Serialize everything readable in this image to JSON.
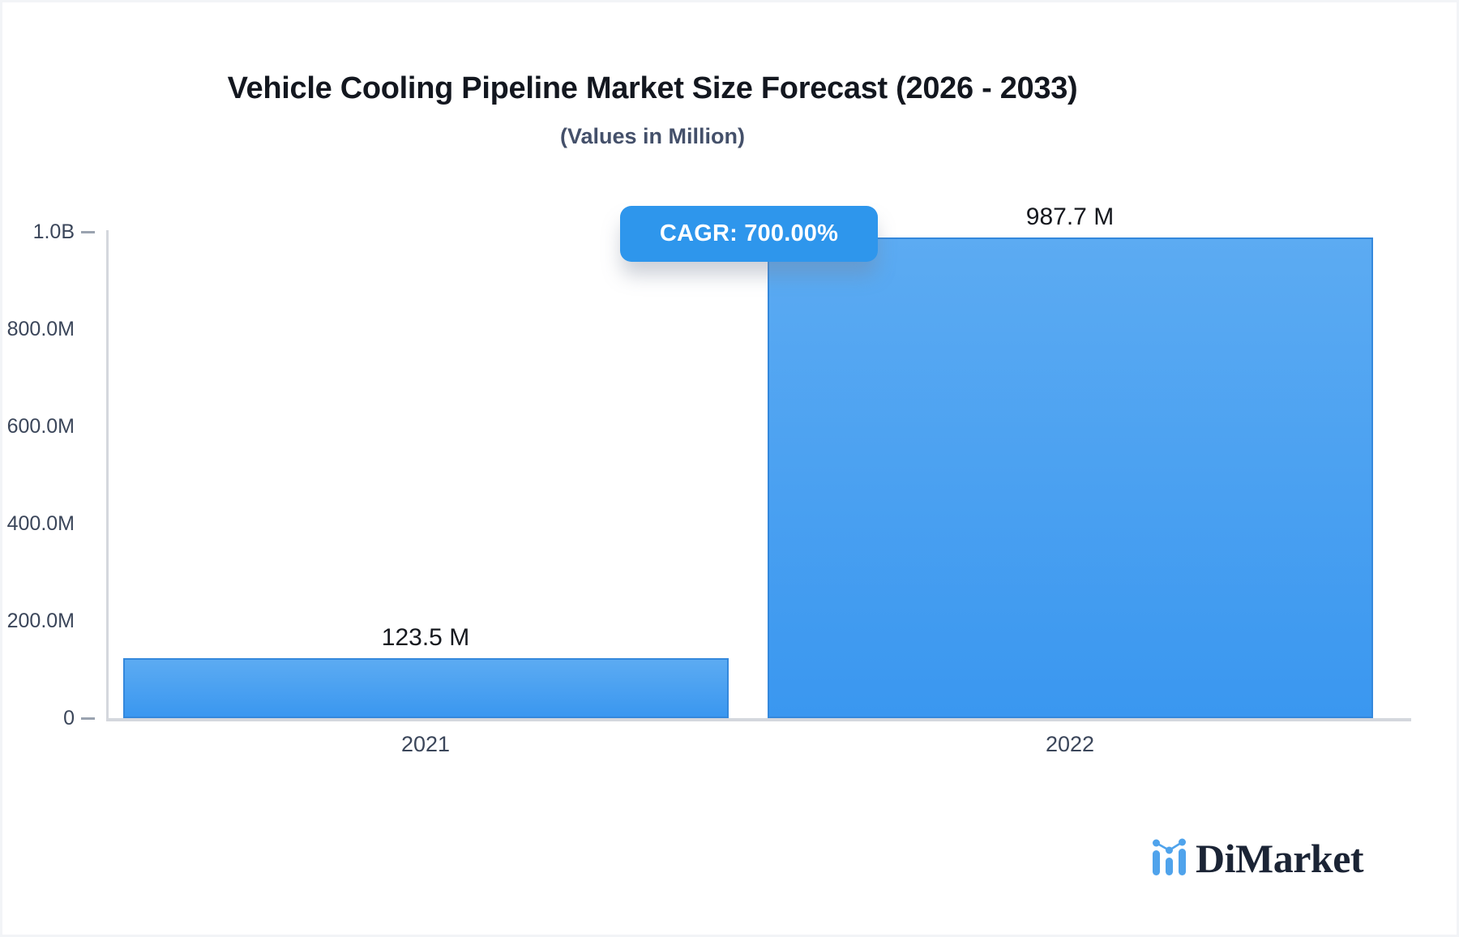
{
  "header": {
    "title": "Vehicle Cooling Pipeline Market Size Forecast (2026 - 2033)",
    "subtitle": "(Values in Million)"
  },
  "cagr": {
    "text": "CAGR: 700.00%"
  },
  "chart_data": {
    "type": "bar",
    "title": "Vehicle Cooling Pipeline Market Size Forecast (2026 - 2033)",
    "subtitle": "(Values in Million)",
    "categories": [
      "2021",
      "2022"
    ],
    "values": [
      123.5,
      987.7
    ],
    "value_labels": [
      "123.5 M",
      "987.7 M"
    ],
    "unit": "Million",
    "cagr_annotation": "CAGR: 700.00%",
    "ylim": [
      0,
      1000
    ],
    "ytick_values": [
      0,
      200,
      400,
      600,
      800,
      1000
    ],
    "ytick_labels": [
      "0",
      "200.0M",
      "400.0M",
      "600.0M",
      "800.0M",
      "1.0B"
    ],
    "grid": false,
    "legend": false
  },
  "branding": {
    "name": "DiMarket",
    "icon": "mini-bar-chart-icon"
  },
  "colors": {
    "bar_gradient_top": "#5cabf2",
    "bar_gradient_bottom": "#3a97f0",
    "bar_border": "#3488dc",
    "badge_bg": "#2e96ec",
    "axis_line": "#d4d7dd",
    "logo_blue": "#4fa3ec"
  }
}
